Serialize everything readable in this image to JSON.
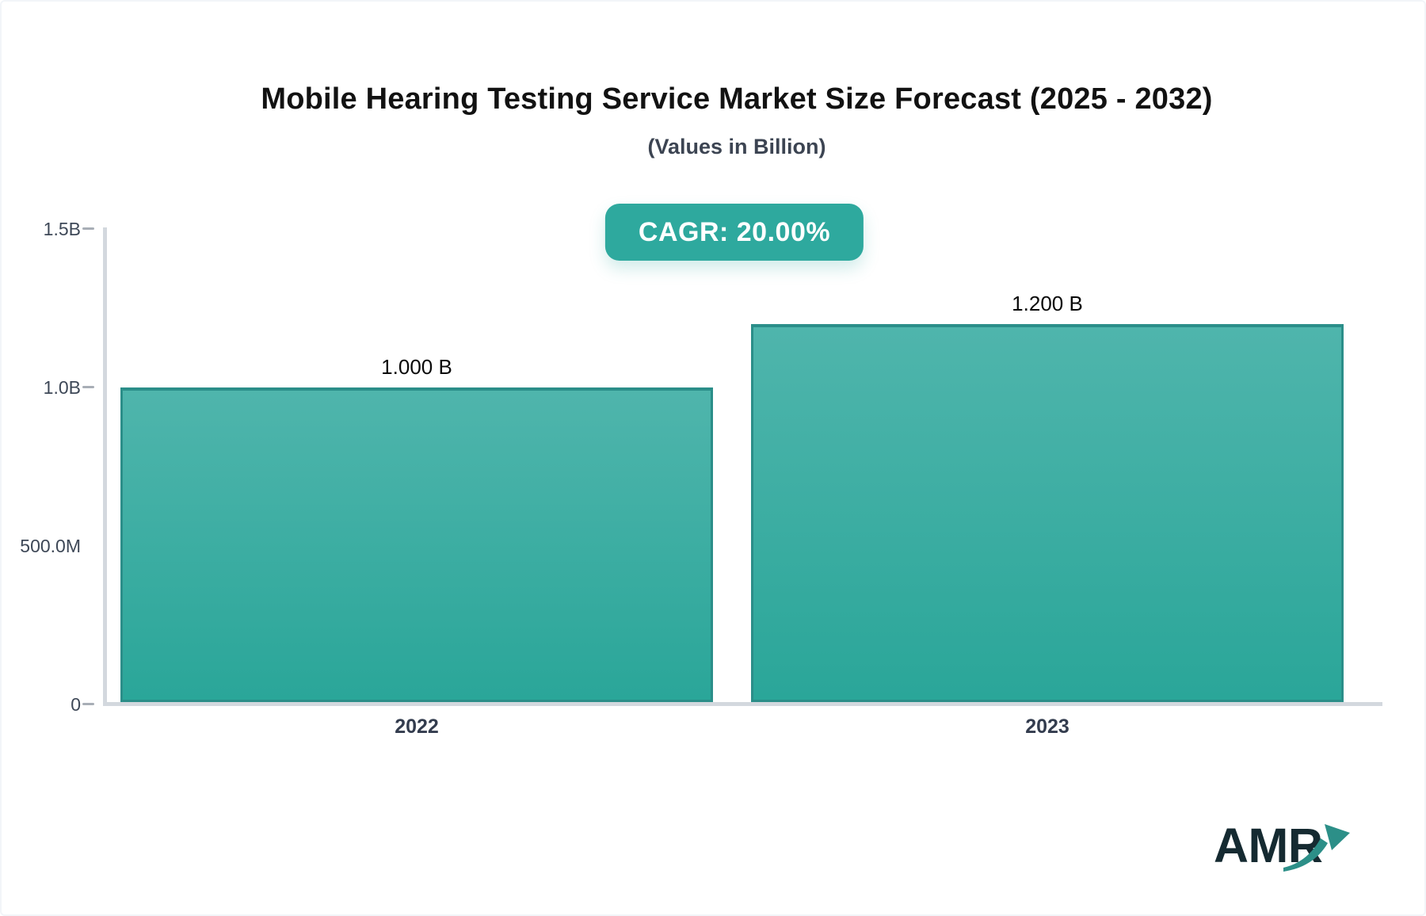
{
  "header": {
    "title": "Mobile Hearing Testing Service Market Size Forecast (2025 - 2032)",
    "subtitle": "(Values in Billion)",
    "cagr_badge": "CAGR: 20.00%"
  },
  "chart_data": {
    "type": "bar",
    "title": "Mobile Hearing Testing Service Market Size Forecast (2025 - 2032)",
    "subtitle": "(Values in Billion)",
    "cagr": "20.00%",
    "categories": [
      "2022",
      "2023"
    ],
    "values": [
      1.0,
      1.2
    ],
    "value_labels": [
      "1.000 B",
      "1.200 B"
    ],
    "ylim": [
      0,
      1.5
    ],
    "y_ticks": [
      {
        "label": "1.5B",
        "value": 1.5,
        "dash": true
      },
      {
        "label": "1.0B",
        "value": 1.0,
        "dash": true
      },
      {
        "label": "500.0M",
        "value": 0.5,
        "dash": false
      },
      {
        "label": "0",
        "value": 0.0,
        "dash": true
      }
    ],
    "grid": false,
    "legend": false,
    "bar_gradient_top": "#4fb5ac",
    "bar_gradient_bottom": "#2aa699",
    "bar_border_color": "#2b8e89"
  },
  "logo": {
    "text": "AMR",
    "arrow_icon": "trend-up-arrow"
  },
  "colors": {
    "badge_bg": "#2ea99e",
    "badge_text": "#ffffff",
    "axis_line": "#d3d8de",
    "tick_dash": "#a8aeb6",
    "axis_label": "#3e4857",
    "category_label": "#333c4e",
    "title_text": "#121212",
    "subtitle_text": "#3c4452",
    "value_label": "#0a0a0a",
    "logo_text": "#152a31",
    "logo_arrow": "#2c8f88"
  }
}
